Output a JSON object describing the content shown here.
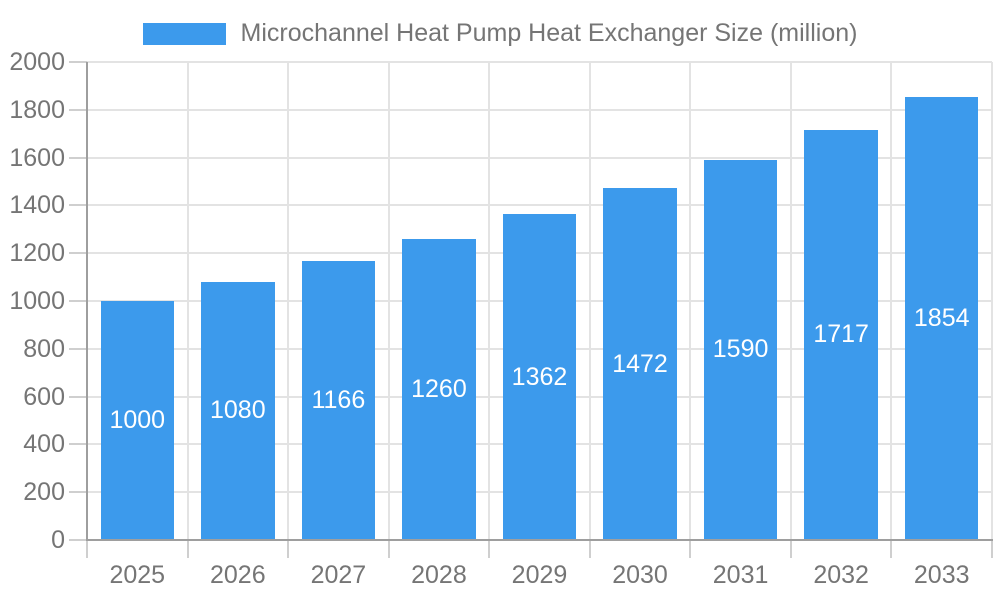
{
  "legend": {
    "label": "Microchannel Heat Pump Heat Exchanger Size (million)"
  },
  "colors": {
    "bar": "#3C9AEC",
    "grid": "#E3E3E3",
    "tick": "#CFCFCF",
    "axis": "#9E9E9E",
    "text": "#757575",
    "value_text": "#FFFFFF",
    "background": "#FFFFFF"
  },
  "chart_data": {
    "type": "bar",
    "title": "Microchannel Heat Pump Heat Exchanger Size (million)",
    "categories": [
      "2025",
      "2026",
      "2027",
      "2028",
      "2029",
      "2030",
      "2031",
      "2032",
      "2033"
    ],
    "values": [
      1000,
      1080,
      1166,
      1260,
      1362,
      1472,
      1590,
      1717,
      1854
    ],
    "xlabel": "",
    "ylabel": "",
    "ylim": [
      0,
      2000
    ],
    "ytick_step": 200,
    "grid": true,
    "legend_position": "top",
    "value_labels": "inside-center"
  }
}
